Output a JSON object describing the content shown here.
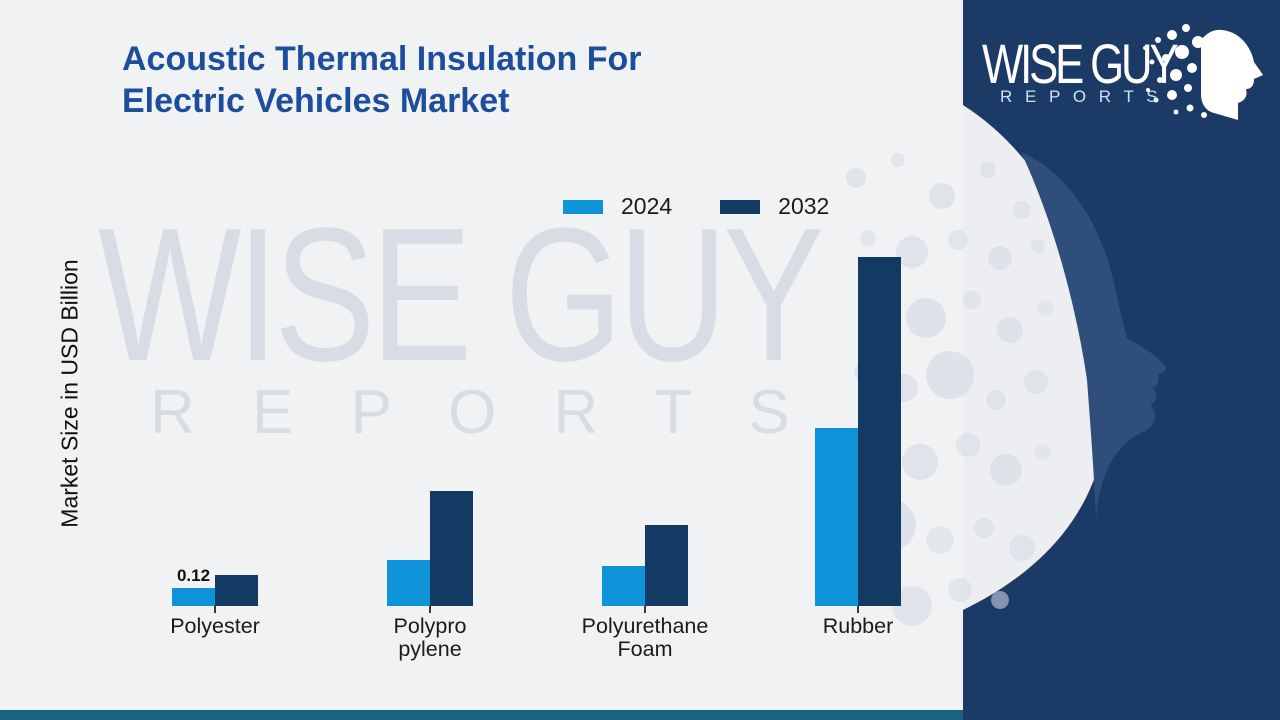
{
  "title": {
    "line1": "Acoustic Thermal Insulation For",
    "line2": "Electric Vehicles Market"
  },
  "y_axis_label": "Market Size in USD Billion",
  "legend": [
    {
      "label": "2024",
      "color": "#0f93d8"
    },
    {
      "label": "2032",
      "color": "#123a63"
    }
  ],
  "chart_data": {
    "type": "bar",
    "title": "Acoustic Thermal Insulation For Electric Vehicles Market",
    "xlabel": "",
    "ylabel": "Market Size in USD Billion",
    "categories": [
      "Polyester",
      "Polypropylene",
      "Polyurethane Foam",
      "Rubber"
    ],
    "category_label_lines": [
      [
        "Polyester"
      ],
      [
        "Polypro",
        "pylene"
      ],
      [
        "Polyurethane",
        "Foam"
      ],
      [
        "Rubber"
      ]
    ],
    "series": [
      {
        "name": "2024",
        "color": "#0f93d8",
        "values": [
          0.12,
          0.31,
          0.27,
          1.19
        ]
      },
      {
        "name": "2032",
        "color": "#123a63",
        "values": [
          0.21,
          0.77,
          0.54,
          2.33
        ]
      }
    ],
    "annotations": [
      {
        "series": "2024",
        "category": "Polyester",
        "text": "0.12"
      }
    ],
    "ylim": [
      0,
      2.6
    ],
    "grid": false,
    "legend_position": "top"
  },
  "watermark": {
    "line1": "WISE GUY",
    "line2": "R E P O R T S"
  },
  "logo": {
    "line1": "WISE GUY",
    "line2": "R E P O R T S"
  },
  "colors": {
    "background": "#f1f2f4",
    "title_blue": "#1d4e9c",
    "bar_2024": "#0f93d8",
    "bar_2032": "#123a63",
    "panel_navy": "#1c3a66",
    "panel_face": "#2f4e7b",
    "panel_bulge": "#eceef1",
    "teal_bottom_bar": "#1b6180",
    "watermark_gray": "#d8dde5"
  }
}
